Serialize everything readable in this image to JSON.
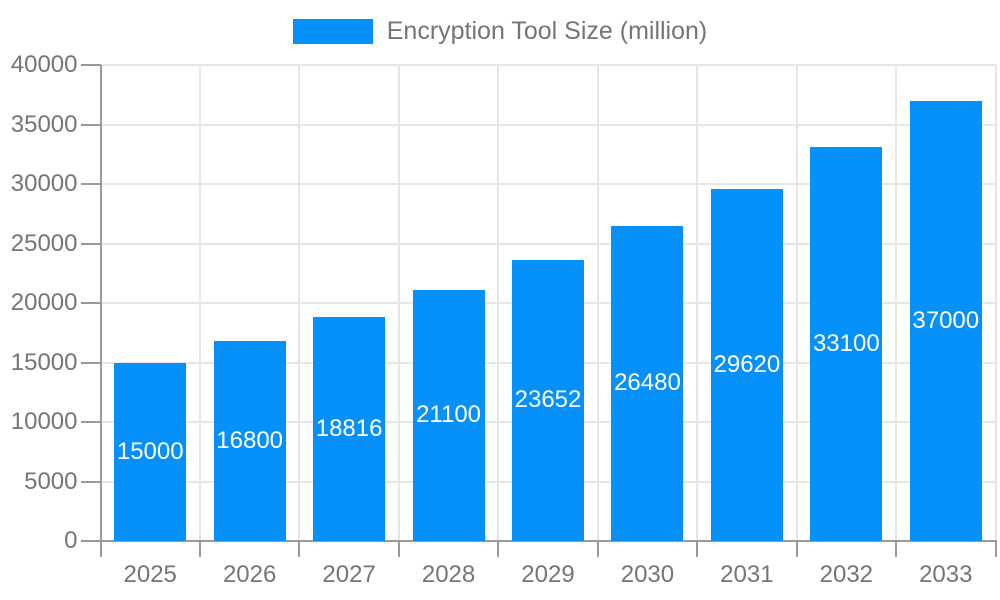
{
  "legend": {
    "label": "Encryption Tool Size (million)"
  },
  "chart_data": {
    "type": "bar",
    "title": "Encryption Tool Size (million)",
    "categories": [
      "2025",
      "2026",
      "2027",
      "2028",
      "2029",
      "2030",
      "2031",
      "2032",
      "2033"
    ],
    "series": [
      {
        "name": "Encryption Tool Size (million)",
        "color": "#0690fa",
        "values": [
          15000,
          16800,
          18816,
          21100,
          23652,
          26480,
          29620,
          33100,
          37000
        ]
      }
    ],
    "value_labels": {
      "position": "inside-center",
      "color": "#ffffff",
      "texts": [
        "15000",
        "16800",
        "18816",
        "21100",
        "23652",
        "26480",
        "29620",
        "33100",
        "37000"
      ]
    },
    "xlabel": "",
    "ylabel": "",
    "ylim": [
      0,
      40000
    ],
    "y_tick_step": 5000,
    "y_tick_labels": [
      "0",
      "5000",
      "10000",
      "15000",
      "20000",
      "25000",
      "30000",
      "35000",
      "40000"
    ],
    "grid": true,
    "grid_vertical": true,
    "legend_position": "top-center",
    "text_color": "#757575",
    "grid_color": "#e6e6e6",
    "axis_color": "#9a9a9a",
    "background": "#ffffff"
  }
}
